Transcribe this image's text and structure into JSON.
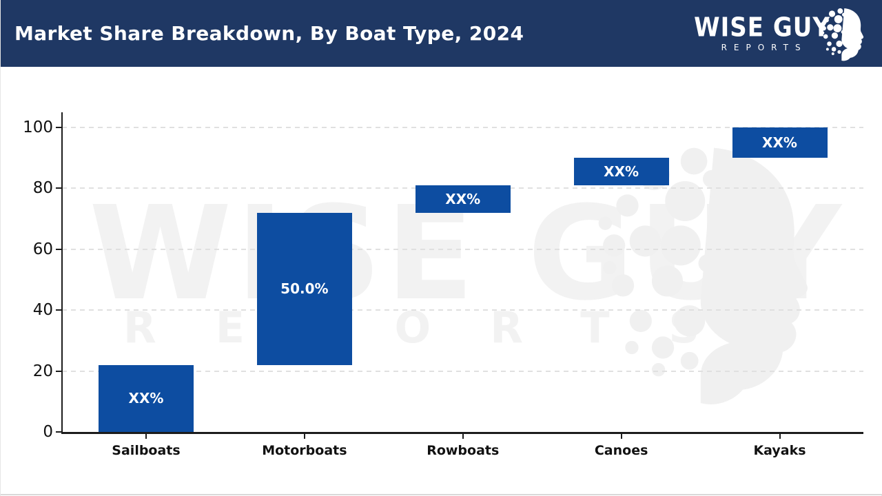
{
  "header": {
    "title": "Market Share Breakdown, By Boat Type, 2024",
    "logo_line1": "WISE GUY",
    "logo_line2": "REPORTS",
    "bg_color": "#1f3864",
    "text_color": "#ffffff"
  },
  "watermark": {
    "line1": "WISE GUY",
    "line2": "REPORTS"
  },
  "chart_data": {
    "type": "bar",
    "subtype": "floating-waterfall",
    "title": "Market Share Breakdown, By Boat Type, 2024",
    "categories": [
      "Sailboats",
      "Motorboats",
      "Rowboats",
      "Canoes",
      "Kayaks"
    ],
    "segments": [
      {
        "category": "Sailboats",
        "start": 0,
        "end": 22,
        "label": "XX%"
      },
      {
        "category": "Motorboats",
        "start": 22,
        "end": 72,
        "label": "50.0%",
        "value": 50.0
      },
      {
        "category": "Rowboats",
        "start": 72,
        "end": 81,
        "label": "XX%"
      },
      {
        "category": "Canoes",
        "start": 81,
        "end": 90,
        "label": "XX%"
      },
      {
        "category": "Kayaks",
        "start": 90,
        "end": 100,
        "label": "XX%"
      }
    ],
    "xlabel": "",
    "ylabel": "",
    "yticks": [
      0,
      20,
      40,
      60,
      80,
      100
    ],
    "ylim": [
      0,
      105
    ],
    "grid": {
      "horizontal": true,
      "style": "dashed",
      "color": "#e0e0e0"
    },
    "legend": null,
    "bar_color": "#0d4da1",
    "bar_label_color": "#ffffff",
    "axis_color": "#1c1c1c",
    "tick_label_color": "#111111"
  }
}
